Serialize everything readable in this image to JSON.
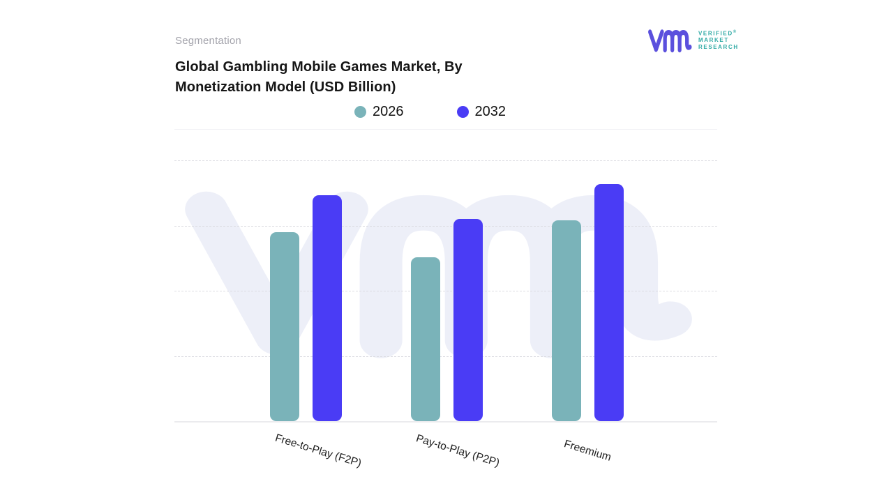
{
  "header": {
    "eyebrow": "Segmentation",
    "title_line1": "Global Gambling Mobile Games Market, By",
    "title_line2": "Monetization Model (USD Billion)"
  },
  "logo": {
    "mark_name": "vmr-monogram",
    "mark_color": "#5b50dd",
    "text_color": "#2faaa5",
    "line1": "VERIFIED",
    "registered_mark": "®",
    "line2": "MARKET",
    "line3": "RESEARCH"
  },
  "legend": {
    "items": [
      {
        "label": "2026",
        "color": "#7ab3b9"
      },
      {
        "label": "2032",
        "color": "#4a3cf5"
      }
    ]
  },
  "chart_data": {
    "type": "bar",
    "title": "Global Gambling Mobile Games Market, By Monetization Model (USD Billion)",
    "categories": [
      "Free-to-Play (F2P)",
      "Pay-to-Play (P2P)",
      "Freemium"
    ],
    "series": [
      {
        "name": "2026",
        "color": "#7ab3b9",
        "values_gridline_units": [
          2.9,
          2.5,
          3.1
        ],
        "height_fraction_of_plot": [
          0.648,
          0.562,
          0.689
        ]
      },
      {
        "name": "2032",
        "color": "#4a3cf5",
        "values_gridline_units": [
          3.5,
          3.1,
          3.6
        ],
        "height_fraction_of_plot": [
          0.775,
          0.694,
          0.813
        ]
      }
    ],
    "xlabel": "",
    "ylabel": "",
    "y_axis": {
      "tick_labels_visible": false,
      "gridlines": "dashed",
      "dashed_gridline_count": 4
    },
    "legend_position": "top",
    "x_tick_rotation_deg": 17,
    "note": "Y axis has no visible tick labels; values estimated with one dashed-gridline interval = 1 unit."
  },
  "watermark": {
    "name": "vmr-logo-watermark",
    "color": "#edeff8"
  }
}
